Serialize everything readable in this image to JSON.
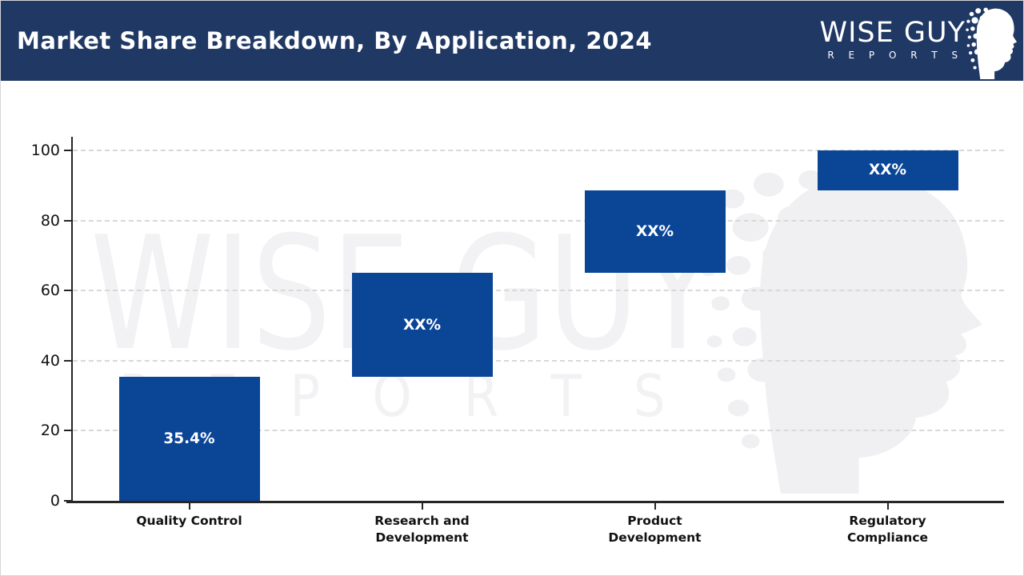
{
  "header": {
    "title": "Market Share Breakdown, By Application, 2024",
    "bg_color": "#1f3864",
    "logo": {
      "line1": "WISE GUY",
      "line2": "R E P O R T S"
    }
  },
  "watermark": {
    "line1": "WISE GUY",
    "line2": "R E P O R T S"
  },
  "chart_data": {
    "type": "bar",
    "subtype": "waterfall-stacked-segments",
    "title": "Market Share Breakdown, By Application, 2024",
    "categories": [
      "Quality Control",
      "Research and\nDevelopment",
      "Product\nDevelopment",
      "Regulatory\nCompliance"
    ],
    "segments": [
      {
        "category": "Quality Control",
        "start": 0,
        "end": 35.4,
        "label": "35.4%"
      },
      {
        "category": "Research and Development",
        "start": 35.4,
        "end": 65.0,
        "label": "XX%"
      },
      {
        "category": "Product Development",
        "start": 65.0,
        "end": 88.6,
        "label": "XX%"
      },
      {
        "category": "Regulatory Compliance",
        "start": 88.6,
        "end": 100,
        "label": "XX%"
      }
    ],
    "yticks": [
      0,
      20,
      40,
      60,
      80,
      100
    ],
    "ylim": [
      0,
      104
    ],
    "xlabel": "",
    "ylabel": "",
    "legend": "none",
    "grid": "horizontal-dashed",
    "bar_color": "#0a4596",
    "bar_label_color": "#ffffff",
    "gridline_color": "#d8d8d8",
    "axis_color": "#262626",
    "background_color": "#ffffff"
  }
}
